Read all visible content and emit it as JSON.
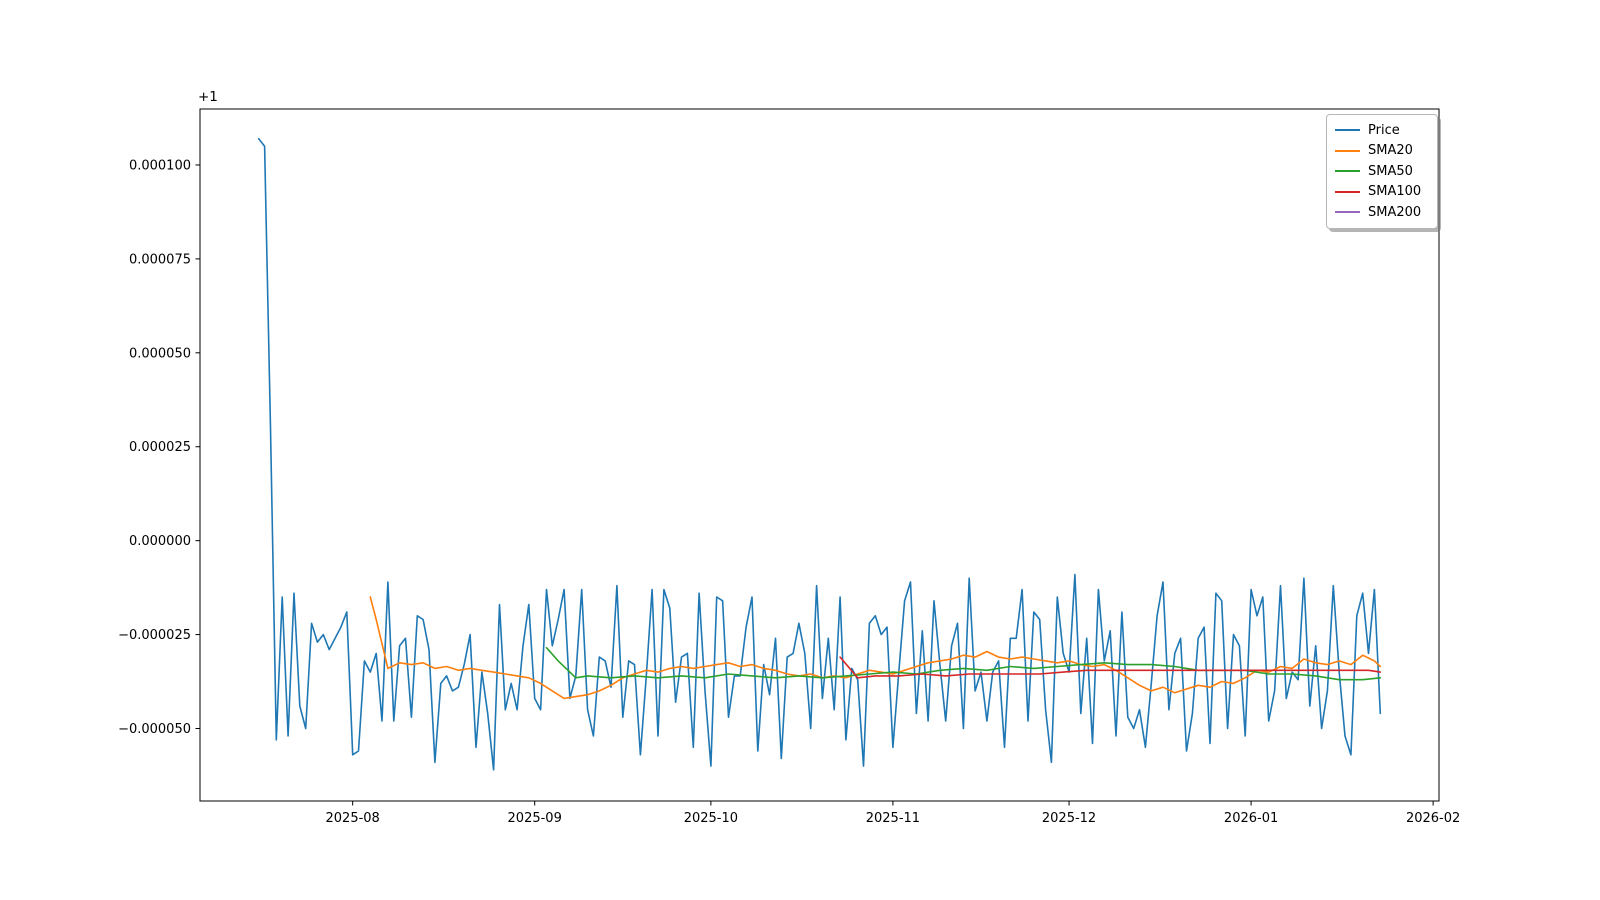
{
  "figure": {
    "background_color": "#ffffff",
    "axes_edge_color": "#000000",
    "tick_label_color": "#000000"
  },
  "chart_data": {
    "type": "line",
    "title": "",
    "xlabel": "",
    "ylabel": "",
    "grid": false,
    "y_offset_label": "+1",
    "value_unit_note": "series values are in units of 1e-6 relative to 1.0; axis label 0.000025 with offset +1 means price 1.000025",
    "x_axis": {
      "range": [
        "2025-07-06",
        "2026-02-02"
      ],
      "ticks": [
        {
          "label": "2025-08",
          "date": "2025-08-01"
        },
        {
          "label": "2025-09",
          "date": "2025-09-01"
        },
        {
          "label": "2025-10",
          "date": "2025-10-01"
        },
        {
          "label": "2025-11",
          "date": "2025-11-01"
        },
        {
          "label": "2025-12",
          "date": "2025-12-01"
        },
        {
          "label": "2026-01",
          "date": "2026-01-01"
        },
        {
          "label": "2026-02",
          "date": "2026-02-01"
        }
      ]
    },
    "y_axis": {
      "range_microunits": [
        -69.3,
        114.9
      ],
      "ticks": [
        {
          "label": "0.000100",
          "value": 100
        },
        {
          "label": "0.000075",
          "value": 75
        },
        {
          "label": "0.000050",
          "value": 50
        },
        {
          "label": "0.000025",
          "value": 25
        },
        {
          "label": "0.000000",
          "value": 0
        },
        {
          "label": "−0.000025",
          "value": -25
        },
        {
          "label": "−0.000050",
          "value": -50
        }
      ]
    },
    "legend": {
      "position": "upper right",
      "entries": [
        {
          "label": "Price",
          "color": "#1f77b4"
        },
        {
          "label": "SMA20",
          "color": "#ff7f0e"
        },
        {
          "label": "SMA50",
          "color": "#2ca02c"
        },
        {
          "label": "SMA100",
          "color": "#d62728"
        },
        {
          "label": "SMA200",
          "color": "#9467bd"
        }
      ]
    },
    "series": {
      "price": {
        "name": "Price",
        "color": "#1f77b4",
        "start_date": "2025-07-16",
        "interval_days": 1,
        "values_microunits": [
          107,
          105,
          30,
          -53,
          -15,
          -52,
          -14,
          -44,
          -50,
          -22,
          -27,
          -25,
          -29,
          -26,
          -23,
          -19,
          -57,
          -56,
          -32,
          -35,
          -30,
          -48,
          -11,
          -48,
          -28,
          -26,
          -47,
          -20,
          -21,
          -29,
          -59,
          -38,
          -36,
          -40,
          -39,
          -33,
          -25,
          -55,
          -35,
          -46,
          -61,
          -17,
          -45,
          -38,
          -45,
          -28,
          -17,
          -42,
          -45,
          -13,
          -28,
          -21,
          -13,
          -42,
          -36,
          -13,
          -45,
          -52,
          -31,
          -32,
          -39,
          -12,
          -47,
          -32,
          -33,
          -57,
          -36,
          -13,
          -52,
          -13,
          -18,
          -43,
          -31,
          -30,
          -55,
          -14,
          -40,
          -60,
          -15,
          -16,
          -47,
          -36,
          -36,
          -23,
          -15,
          -56,
          -33,
          -41,
          -26,
          -58,
          -31,
          -30,
          -22,
          -30,
          -50,
          -12,
          -42,
          -26,
          -45,
          -15,
          -53,
          -34,
          -37,
          -60,
          -22,
          -20,
          -25,
          -23,
          -55,
          -35,
          -16,
          -11,
          -46,
          -24,
          -48,
          -16,
          -33,
          -48,
          -28,
          -22,
          -50,
          -10,
          -40,
          -35,
          -48,
          -35,
          -32,
          -55,
          -26,
          -26,
          -13,
          -48,
          -19,
          -21,
          -45,
          -59,
          -15,
          -30,
          -35,
          -9,
          -46,
          -26,
          -54,
          -13,
          -32,
          -24,
          -52,
          -19,
          -47,
          -50,
          -45,
          -55,
          -38,
          -20,
          -11,
          -45,
          -30,
          -26,
          -56,
          -46,
          -26,
          -23,
          -54,
          -14,
          -16,
          -50,
          -25,
          -28,
          -52,
          -13,
          -20,
          -15,
          -48,
          -40,
          -12,
          -42,
          -35,
          -37,
          -10,
          -44,
          -28,
          -50,
          -40,
          -12,
          -35,
          -52,
          -57,
          -20,
          -14,
          -30,
          -13,
          -46
        ]
      },
      "sma20": {
        "name": "SMA20",
        "color": "#ff7f0e",
        "points": [
          [
            "2025-08-04",
            -15
          ],
          [
            "2025-08-05",
            -21
          ],
          [
            "2025-08-07",
            -34
          ],
          [
            "2025-08-09",
            -32.5
          ],
          [
            "2025-08-11",
            -33
          ],
          [
            "2025-08-13",
            -32.5
          ],
          [
            "2025-08-15",
            -34
          ],
          [
            "2025-08-17",
            -33.5
          ],
          [
            "2025-08-19",
            -34.5
          ],
          [
            "2025-08-21",
            -34
          ],
          [
            "2025-08-23",
            -34.5
          ],
          [
            "2025-08-25",
            -35
          ],
          [
            "2025-08-27",
            -35.5
          ],
          [
            "2025-08-29",
            -36
          ],
          [
            "2025-08-31",
            -36.5
          ],
          [
            "2025-09-02",
            -38
          ],
          [
            "2025-09-04",
            -40
          ],
          [
            "2025-09-06",
            -42
          ],
          [
            "2025-09-08",
            -41.5
          ],
          [
            "2025-09-10",
            -41
          ],
          [
            "2025-09-12",
            -40
          ],
          [
            "2025-09-14",
            -38.5
          ],
          [
            "2025-09-16",
            -36.5
          ],
          [
            "2025-09-18",
            -35.5
          ],
          [
            "2025-09-20",
            -34.5
          ],
          [
            "2025-09-22",
            -35
          ],
          [
            "2025-09-24",
            -34
          ],
          [
            "2025-09-26",
            -33.5
          ],
          [
            "2025-09-28",
            -34
          ],
          [
            "2025-09-30",
            -33.5
          ],
          [
            "2025-10-02",
            -33
          ],
          [
            "2025-10-04",
            -32.5
          ],
          [
            "2025-10-06",
            -33.5
          ],
          [
            "2025-10-08",
            -33
          ],
          [
            "2025-10-10",
            -34
          ],
          [
            "2025-10-12",
            -34.5
          ],
          [
            "2025-10-14",
            -35.5
          ],
          [
            "2025-10-16",
            -36
          ],
          [
            "2025-10-18",
            -35.5
          ],
          [
            "2025-10-20",
            -36.5
          ],
          [
            "2025-10-22",
            -36
          ],
          [
            "2025-10-24",
            -36.5
          ],
          [
            "2025-10-26",
            -35.5
          ],
          [
            "2025-10-28",
            -34.5
          ],
          [
            "2025-10-30",
            -35
          ],
          [
            "2025-11-01",
            -35.5
          ],
          [
            "2025-11-03",
            -34.5
          ],
          [
            "2025-11-05",
            -33.5
          ],
          [
            "2025-11-07",
            -32.5
          ],
          [
            "2025-11-09",
            -32
          ],
          [
            "2025-11-11",
            -31.5
          ],
          [
            "2025-11-13",
            -30.5
          ],
          [
            "2025-11-15",
            -31
          ],
          [
            "2025-11-17",
            -29.5
          ],
          [
            "2025-11-19",
            -31
          ],
          [
            "2025-11-21",
            -31.5
          ],
          [
            "2025-11-23",
            -31
          ],
          [
            "2025-11-25",
            -31.5
          ],
          [
            "2025-11-27",
            -32
          ],
          [
            "2025-11-29",
            -32.5
          ],
          [
            "2025-12-01",
            -32
          ],
          [
            "2025-12-03",
            -33
          ],
          [
            "2025-12-05",
            -33.5
          ],
          [
            "2025-12-07",
            -33
          ],
          [
            "2025-12-09",
            -34.5
          ],
          [
            "2025-12-11",
            -36.5
          ],
          [
            "2025-12-13",
            -38.5
          ],
          [
            "2025-12-15",
            -40
          ],
          [
            "2025-12-17",
            -39
          ],
          [
            "2025-12-19",
            -40.5
          ],
          [
            "2025-12-21",
            -39.5
          ],
          [
            "2025-12-23",
            -38.5
          ],
          [
            "2025-12-25",
            -39
          ],
          [
            "2025-12-27",
            -37.5
          ],
          [
            "2025-12-29",
            -38
          ],
          [
            "2025-12-31",
            -36.5
          ],
          [
            "2026-01-02",
            -34.5
          ],
          [
            "2026-01-04",
            -35
          ],
          [
            "2026-01-06",
            -33.5
          ],
          [
            "2026-01-08",
            -34
          ],
          [
            "2026-01-10",
            -31.5
          ],
          [
            "2026-01-12",
            -32.5
          ],
          [
            "2026-01-14",
            -33
          ],
          [
            "2026-01-16",
            -32
          ],
          [
            "2026-01-18",
            -33
          ],
          [
            "2026-01-20",
            -30.5
          ],
          [
            "2026-01-22",
            -32
          ],
          [
            "2026-01-23",
            -33.5
          ]
        ]
      },
      "sma50": {
        "name": "SMA50",
        "color": "#2ca02c",
        "points": [
          [
            "2025-09-03",
            -28.5
          ],
          [
            "2025-09-05",
            -32
          ],
          [
            "2025-09-08",
            -36.5
          ],
          [
            "2025-09-10",
            -36
          ],
          [
            "2025-09-14",
            -36.5
          ],
          [
            "2025-09-18",
            -36
          ],
          [
            "2025-09-22",
            -36.5
          ],
          [
            "2025-09-26",
            -36
          ],
          [
            "2025-09-30",
            -36.5
          ],
          [
            "2025-10-04",
            -35.5
          ],
          [
            "2025-10-08",
            -36
          ],
          [
            "2025-10-12",
            -36.5
          ],
          [
            "2025-10-16",
            -36
          ],
          [
            "2025-10-20",
            -36.5
          ],
          [
            "2025-10-24",
            -36
          ],
          [
            "2025-10-28",
            -35.5
          ],
          [
            "2025-11-01",
            -35
          ],
          [
            "2025-11-05",
            -35.5
          ],
          [
            "2025-11-09",
            -34.5
          ],
          [
            "2025-11-13",
            -34
          ],
          [
            "2025-11-17",
            -34.5
          ],
          [
            "2025-11-21",
            -33.5
          ],
          [
            "2025-11-25",
            -34
          ],
          [
            "2025-11-29",
            -33.5
          ],
          [
            "2025-12-03",
            -33
          ],
          [
            "2025-12-07",
            -32.5
          ],
          [
            "2025-12-11",
            -33
          ],
          [
            "2025-12-15",
            -33
          ],
          [
            "2025-12-19",
            -33.5
          ],
          [
            "2025-12-23",
            -34.5
          ],
          [
            "2025-12-27",
            -34.5
          ],
          [
            "2025-12-31",
            -34.5
          ],
          [
            "2026-01-04",
            -35.5
          ],
          [
            "2026-01-08",
            -35.5
          ],
          [
            "2026-01-12",
            -36
          ],
          [
            "2026-01-16",
            -37
          ],
          [
            "2026-01-20",
            -37
          ],
          [
            "2026-01-23",
            -36.5
          ]
        ]
      },
      "sma100": {
        "name": "SMA100",
        "color": "#d62728",
        "points": [
          [
            "2025-10-23",
            -31
          ],
          [
            "2025-10-26",
            -36.5
          ],
          [
            "2025-10-29",
            -36
          ],
          [
            "2025-11-02",
            -36
          ],
          [
            "2025-11-06",
            -35.5
          ],
          [
            "2025-11-10",
            -36
          ],
          [
            "2025-11-14",
            -35.5
          ],
          [
            "2025-11-18",
            -35.5
          ],
          [
            "2025-11-22",
            -35.5
          ],
          [
            "2025-11-26",
            -35.5
          ],
          [
            "2025-11-30",
            -35
          ],
          [
            "2025-12-04",
            -34.5
          ],
          [
            "2025-12-08",
            -34.5
          ],
          [
            "2025-12-12",
            -34.5
          ],
          [
            "2025-12-16",
            -34.5
          ],
          [
            "2025-12-20",
            -34.5
          ],
          [
            "2025-12-24",
            -34.5
          ],
          [
            "2025-12-28",
            -34.5
          ],
          [
            "2026-01-01",
            -34.5
          ],
          [
            "2026-01-05",
            -34.5
          ],
          [
            "2026-01-09",
            -34.5
          ],
          [
            "2026-01-13",
            -34.5
          ],
          [
            "2026-01-17",
            -34.5
          ],
          [
            "2026-01-21",
            -34.5
          ],
          [
            "2026-01-23",
            -35
          ]
        ]
      },
      "sma200": {
        "name": "SMA200",
        "color": "#9467bd",
        "points": []
      }
    }
  }
}
